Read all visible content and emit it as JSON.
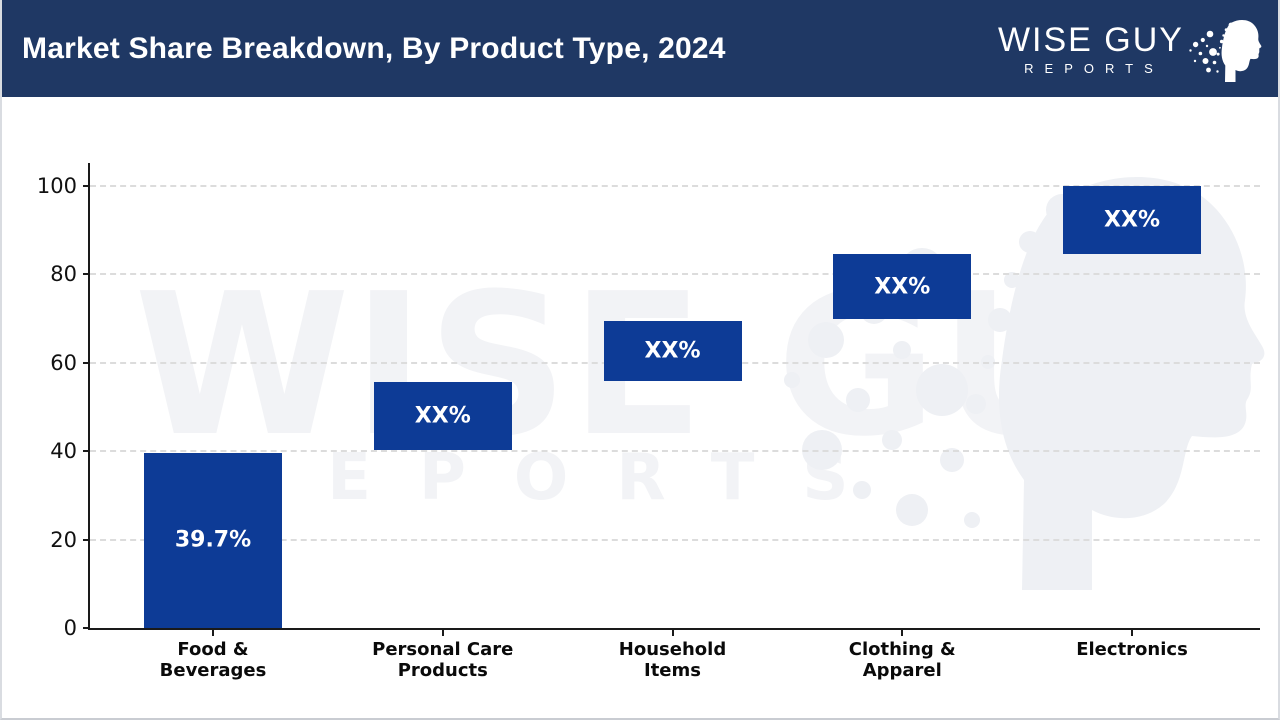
{
  "header": {
    "title": "Market Share Breakdown, By Product Type, 2024",
    "background_color": "#1f3864",
    "logo": {
      "brand_line1": "WISE GUY",
      "brand_line2": "REPORTS"
    }
  },
  "watermark": {
    "line1": "WISE GUY",
    "line2": "REPORTS"
  },
  "chart_data": {
    "type": "bar",
    "subtype": "waterfall",
    "title": "Market Share Breakdown, By Product Type, 2024",
    "categories": [
      "Food & Beverages",
      "Personal Care Products",
      "Household Items",
      "Clothing & Apparel",
      "Electronics"
    ],
    "bars": [
      {
        "category": "Food & Beverages",
        "start": 0,
        "end": 39.7,
        "label": "39.7%"
      },
      {
        "category": "Personal Care Products",
        "start": 40.2,
        "end": 55.7,
        "label": "XX%"
      },
      {
        "category": "Household Items",
        "start": 55.9,
        "end": 69.4,
        "label": "XX%"
      },
      {
        "category": "Clothing & Apparel",
        "start": 69.8,
        "end": 84.6,
        "label": "XX%"
      },
      {
        "category": "Electronics",
        "start": 84.6,
        "end": 100,
        "label": "XX%"
      }
    ],
    "xlabel": "",
    "ylabel": "",
    "ylim": [
      0,
      100
    ],
    "yticks": [
      0,
      20,
      40,
      60,
      80,
      100
    ],
    "bar_color": "#0d3b96",
    "grid": "horizontal-dashed",
    "legend_position": "none"
  }
}
